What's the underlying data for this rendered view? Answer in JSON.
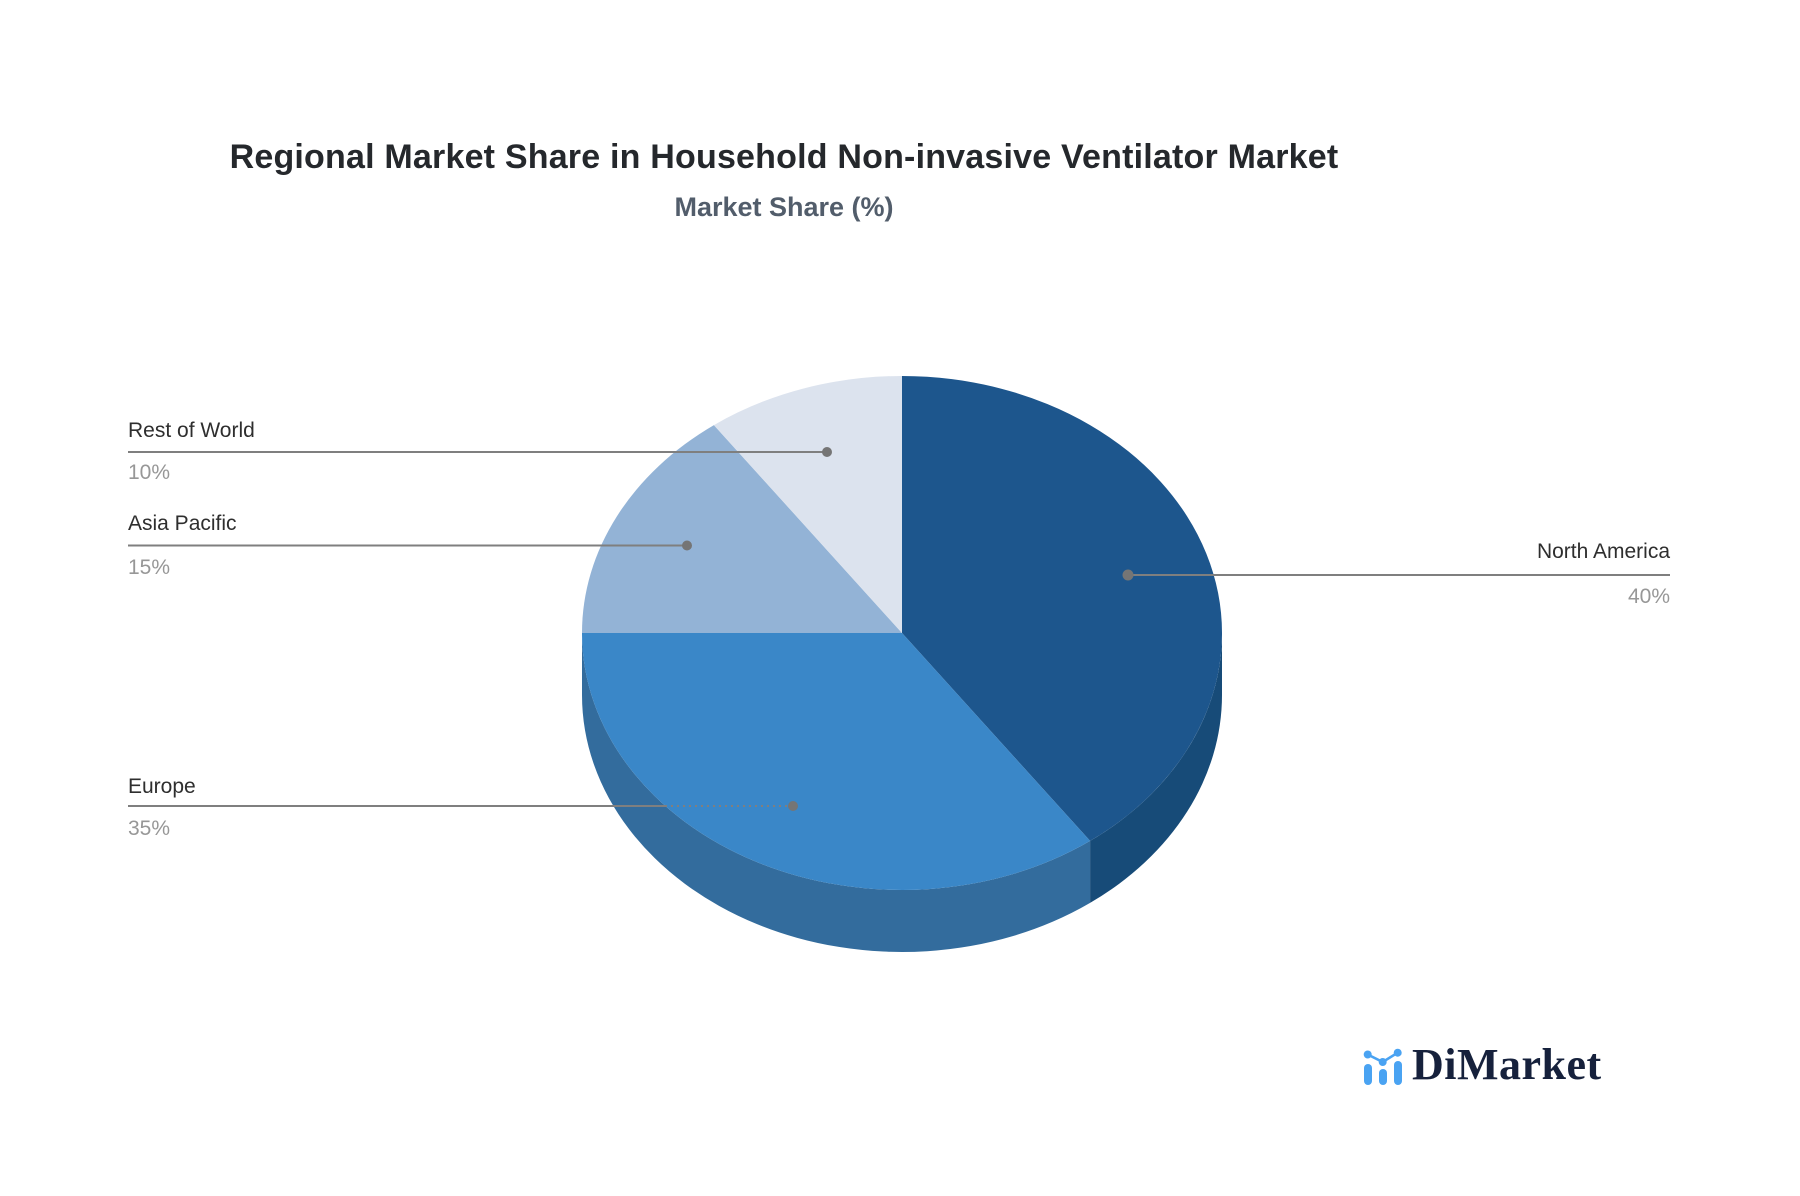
{
  "header": {
    "title": "Regional Market Share in Household Non-invasive Ventilator Market",
    "subtitle": "Market Share (%)"
  },
  "chart_data": {
    "type": "pie",
    "title": "Regional Market Share in Household Non-invasive Ventilator Market",
    "subtitle": "Market Share (%)",
    "unit": "%",
    "start_angle_deg": 0,
    "clockwise": true,
    "style": "3d-depth",
    "legend_position": "callout-labels",
    "slices": [
      {
        "label": "North America",
        "value": 40,
        "pct_label": "40%",
        "color": "#1d568d",
        "side_color": "#174b78"
      },
      {
        "label": "Europe",
        "value": 35,
        "pct_label": "35%",
        "color": "#3a87c8",
        "side_color": "#336c9d"
      },
      {
        "label": "Asia Pacific",
        "value": 15,
        "pct_label": "15%",
        "color": "#93b3d6",
        "side_color": "#7fa2c8"
      },
      {
        "label": "Rest of World",
        "value": 10,
        "pct_label": "10%",
        "color": "#dce3ee",
        "side_color": "#c2cdde"
      }
    ],
    "leader_line_color": "#7f7f7f",
    "label_color": "#2e2e2e",
    "pct_color": "#979797"
  },
  "logo": {
    "text": "DiMarket",
    "icon": "bar-line-chart-icon",
    "icon_color": "#4aa3f2",
    "text_color": "#16213c"
  }
}
